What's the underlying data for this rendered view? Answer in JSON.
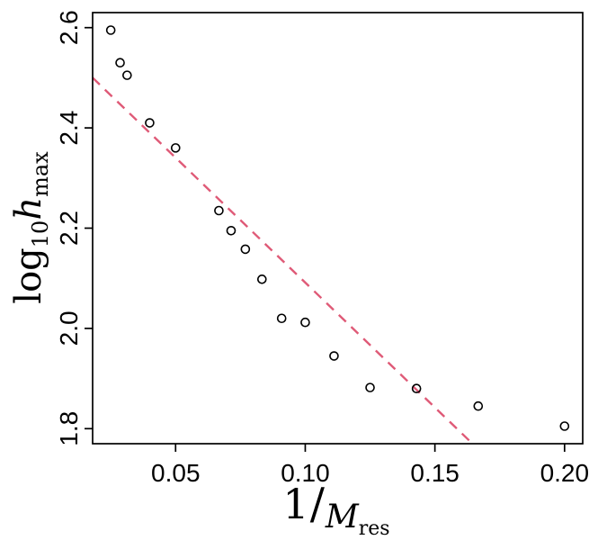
{
  "figure": {
    "background": "#ffffff",
    "border_color": "#000000"
  },
  "chart_data": {
    "type": "scatter",
    "title": "",
    "xlabel": {
      "numerator": "1",
      "slash": "/",
      "variable": "M",
      "subscript": "res"
    },
    "ylabel": {
      "prefix": "log",
      "prefix_sub": "10",
      "variable": "h",
      "variable_sub": "max"
    },
    "xlim": [
      0.018,
      0.207
    ],
    "ylim": [
      1.77,
      2.63
    ],
    "x_ticks": [
      0.05,
      0.1,
      0.15,
      0.2
    ],
    "x_tick_labels": [
      "0.05",
      "0.10",
      "0.15",
      "0.20"
    ],
    "y_ticks": [
      1.8,
      2.0,
      2.2,
      2.4,
      2.6
    ],
    "y_tick_labels": [
      "1.8",
      "2.0",
      "2.2",
      "2.4",
      "2.6"
    ],
    "grid": false,
    "legend": null,
    "point_style": {
      "marker": "open-circle",
      "color": "#000000",
      "radius": 4.5,
      "stroke_width": 1.6
    },
    "points": [
      {
        "x": 0.025,
        "y": 2.595
      },
      {
        "x": 0.0286,
        "y": 2.53
      },
      {
        "x": 0.0313,
        "y": 2.505
      },
      {
        "x": 0.04,
        "y": 2.41
      },
      {
        "x": 0.05,
        "y": 2.36
      },
      {
        "x": 0.0667,
        "y": 2.235
      },
      {
        "x": 0.0714,
        "y": 2.195
      },
      {
        "x": 0.0769,
        "y": 2.158
      },
      {
        "x": 0.0833,
        "y": 2.098
      },
      {
        "x": 0.0909,
        "y": 2.02
      },
      {
        "x": 0.1,
        "y": 2.012
      },
      {
        "x": 0.1111,
        "y": 1.945
      },
      {
        "x": 0.125,
        "y": 1.882
      },
      {
        "x": 0.1429,
        "y": 1.88
      },
      {
        "x": 0.1667,
        "y": 1.845
      },
      {
        "x": 0.2,
        "y": 1.805
      }
    ],
    "fit_line": {
      "style": "dashed",
      "color": "#df5a77",
      "stroke_width": 2.4,
      "dash_pattern": "11 8",
      "x1": 0.018,
      "y1": 2.5,
      "x2": 0.1645,
      "y2": 1.77
    }
  }
}
